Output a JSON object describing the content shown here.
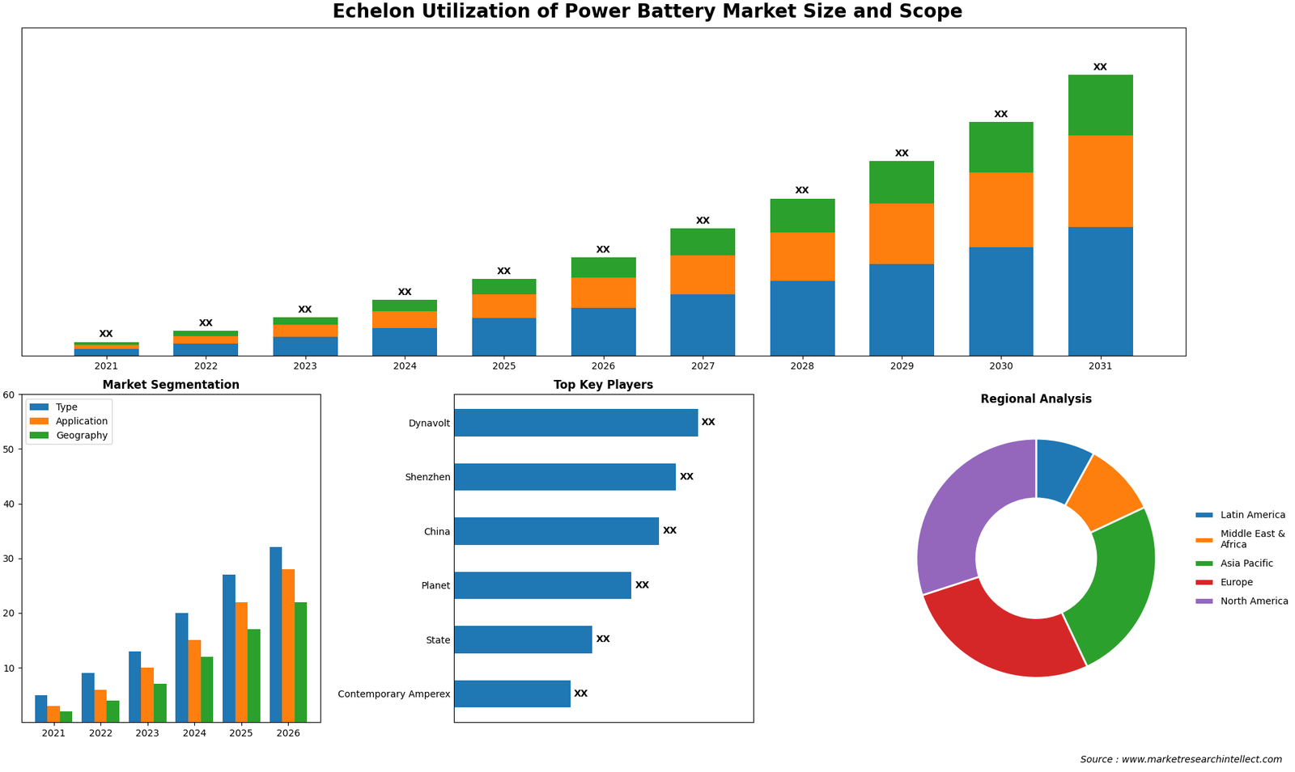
{
  "title": "Echelon Utilization of Power Battery Market Size and Scope",
  "annotations": [
    "Source : www.marketresearchintellect.com"
  ],
  "chart_data": [
    {
      "type": "bar",
      "stacked": true,
      "categories": [
        "2021",
        "2022",
        "2023",
        "2024",
        "2025",
        "2026",
        "2027",
        "2028",
        "2029",
        "2030",
        "2031"
      ],
      "series": [
        {
          "values": [
            1.0,
            1.8,
            2.8,
            4.0,
            5.5,
            7.0,
            9.0,
            11.0,
            13.5,
            16.0,
            19.0
          ]
        },
        {
          "values": [
            0.6,
            1.1,
            1.7,
            2.5,
            3.5,
            4.5,
            5.8,
            7.2,
            9.0,
            11.0,
            13.5
          ]
        },
        {
          "values": [
            0.4,
            0.7,
            1.1,
            1.7,
            2.3,
            3.0,
            4.0,
            5.0,
            6.2,
            7.5,
            9.0
          ],
          "value_labels": [
            "XX",
            "XX",
            "XX",
            "XX",
            "XX",
            "XX",
            "XX",
            "XX",
            "XX",
            "XX",
            "XX"
          ]
        }
      ],
      "data_labels": true,
      "ylim": [
        0,
        48.5
      ],
      "yticks": [],
      "tick_labels": "x"
    },
    {
      "type": "bar",
      "title": "Market Segmentation",
      "categories": [
        "2021",
        "2022",
        "2023",
        "2024",
        "2025",
        "2026"
      ],
      "series": [
        {
          "name": "Type",
          "values": [
            5,
            9,
            13,
            20,
            27,
            32
          ]
        },
        {
          "name": "Application",
          "values": [
            3,
            6,
            10,
            15,
            22,
            28
          ]
        },
        {
          "name": "Geography",
          "values": [
            2,
            4,
            7,
            12,
            17,
            22
          ]
        }
      ],
      "ylim": [
        0,
        60
      ],
      "yticks": [
        10,
        20,
        30,
        40,
        50,
        60
      ],
      "legend": "upper left"
    },
    {
      "type": "bar",
      "orientation": "horizontal",
      "title": "Top Key Players",
      "categories": [
        "Dynavolt",
        "Shenzhen",
        "China",
        "Planet",
        "State",
        "Contemporary Amperex"
      ],
      "values": [
        88,
        80,
        74,
        64,
        50,
        42
      ],
      "value_labels": [
        "XX",
        "XX",
        "XX",
        "XX",
        "XX",
        "XX"
      ],
      "data_labels": true,
      "xlim": [
        0,
        108
      ],
      "xticks": [],
      "tick_labels": "y"
    },
    {
      "type": "pie",
      "title": "Regional Analysis",
      "categories": [
        "Latin America",
        "Middle East &\nAfrica",
        "Asia Pacific",
        "Europe",
        "North America"
      ],
      "values": [
        8,
        10,
        25,
        27,
        30
      ],
      "legend": "center left"
    }
  ]
}
